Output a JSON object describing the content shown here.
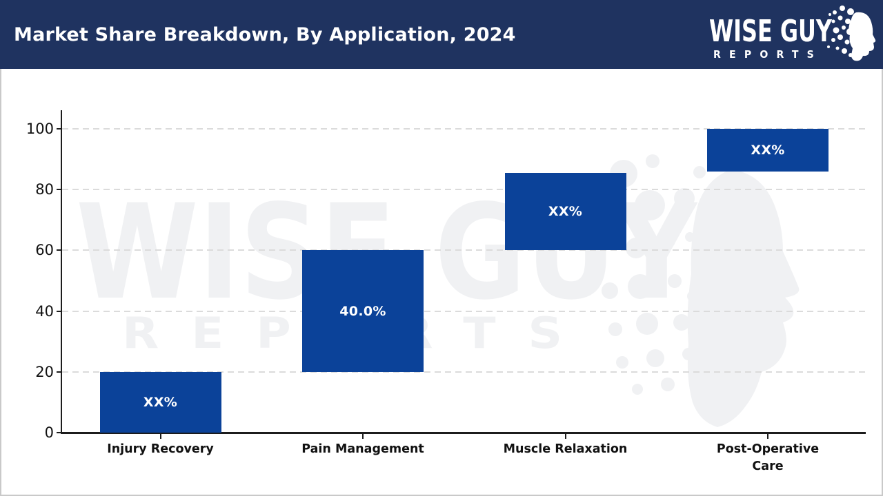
{
  "header": {
    "title": "Market Share Breakdown, By Application, 2024",
    "bg_color": "#1f3360",
    "logo": {
      "brand": "WISE GUY",
      "sub": "REPORTS"
    }
  },
  "watermark": {
    "brand": "WISE GUY",
    "sub": "REPORTS"
  },
  "chart_data": {
    "type": "bar",
    "subtype": "waterfall",
    "title": "Market Share Breakdown, By Application, 2024",
    "categories": [
      "Injury Recovery",
      "Pain Management",
      "Muscle Relaxation",
      "Post-Operative Care"
    ],
    "x_tick_labels": [
      "Injury Recovery",
      "Pain Management",
      "Muscle Relaxation",
      "Post-Operative\nCare"
    ],
    "segments": [
      {
        "category": "Injury Recovery",
        "start": 0,
        "end": 20,
        "label": "XX%"
      },
      {
        "category": "Pain Management",
        "start": 20,
        "end": 60,
        "label": "40.0%"
      },
      {
        "category": "Muscle Relaxation",
        "start": 60,
        "end": 85.5,
        "label": "XX%"
      },
      {
        "category": "Post-Operative Care",
        "start": 86,
        "end": 100,
        "label": "XX%"
      }
    ],
    "y_ticks": [
      0,
      20,
      40,
      60,
      80,
      100
    ],
    "ylim": [
      0,
      105
    ],
    "grid": "dashed-horizontal",
    "legend": "none",
    "bar_color": "#0b4299",
    "bar_label_color": "#ffffff",
    "axis_color": "#1c1c1c",
    "gridline_color": "#dbdbdb"
  }
}
